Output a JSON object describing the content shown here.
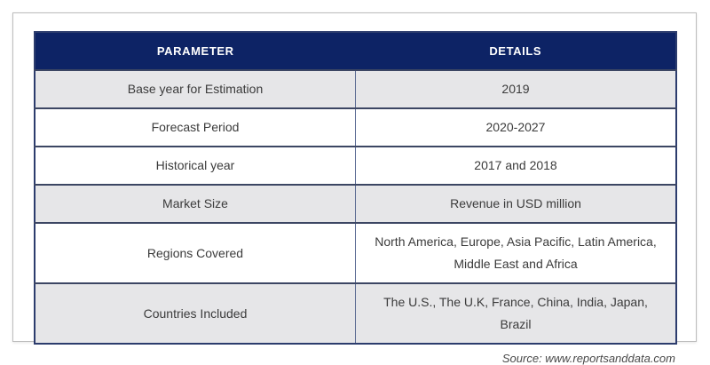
{
  "table": {
    "columns": [
      "PARAMETER",
      "DETAILS"
    ],
    "rows": [
      {
        "parameter": "Base year for Estimation",
        "details": "2019"
      },
      {
        "parameter": "Forecast Period",
        "details": "2020-2027"
      },
      {
        "parameter": "Historical year",
        "details": "2017 and 2018"
      },
      {
        "parameter": "Market Size",
        "details": "Revenue in USD million"
      },
      {
        "parameter": "Regions Covered",
        "details": "North America, Europe, Asia Pacific, Latin America, Middle East and Africa"
      },
      {
        "parameter": "Countries Included",
        "details": "The U.S., The  U.K, France, China, India, Japan, Brazil"
      }
    ]
  },
  "source": {
    "label": "Source: www.reportsanddata.com"
  },
  "colors": {
    "header_bg": "#0d2365",
    "header_text": "#ffffff",
    "row_alt_bg": "#e6e6e8",
    "row_bg": "#ffffff",
    "inner_border": "#3c4663",
    "column_divider": "#5a6a92",
    "outer_table_border": "#2c3c6d",
    "card_border": "#bdbdbd",
    "cell_text": "#3b3b3b",
    "source_text": "#4a4a4a"
  }
}
